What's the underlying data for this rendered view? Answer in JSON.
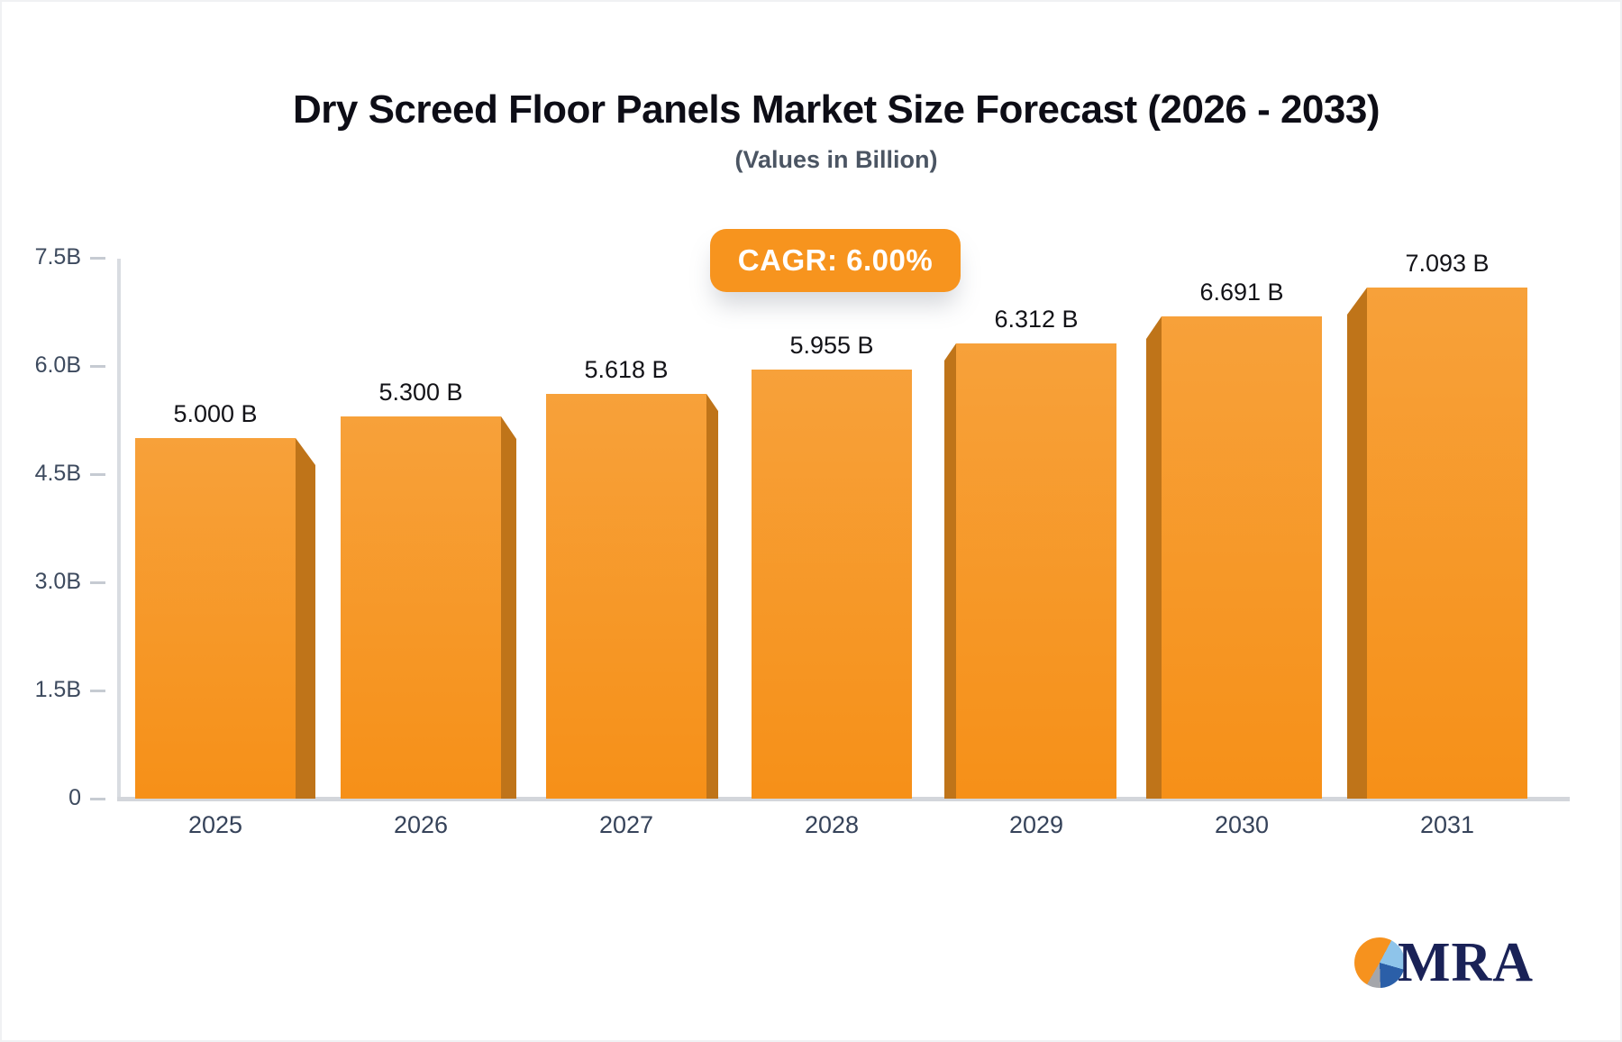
{
  "title": "Dry Screed Floor Panels Market Size Forecast (2026 - 2033)",
  "subtitle": "(Values in Billion)",
  "badge": {
    "label": "CAGR: 6.00%",
    "color": "#f7941e"
  },
  "logo": {
    "text": "MRA",
    "pie_icon_colors": [
      "#f6921e",
      "#8ec4ea",
      "#2b5fa8",
      "#a4a6ab"
    ]
  },
  "chart_data": {
    "type": "bar",
    "categories": [
      "2025",
      "2026",
      "2027",
      "2028",
      "2029",
      "2030",
      "2031"
    ],
    "values": [
      5.0,
      5.3,
      5.618,
      5.955,
      6.312,
      6.691,
      7.093
    ],
    "value_labels": [
      "5.000 B",
      "5.300 B",
      "5.618 B",
      "5.955 B",
      "6.312 B",
      "6.691 B",
      "7.093 B"
    ],
    "title": "Dry Screed Floor Panels Market Size Forecast (2026 - 2033)",
    "subtitle": "(Values in Billion)",
    "annotation": "CAGR: 6.00%",
    "xlabel": "",
    "ylabel": "",
    "ylim": [
      0,
      7.5
    ],
    "yticks": [
      {
        "value": 7.5,
        "label": "7.5B"
      },
      {
        "value": 6.0,
        "label": "6.0B"
      },
      {
        "value": 4.5,
        "label": "4.5B"
      },
      {
        "value": 3.0,
        "label": "3.0B"
      },
      {
        "value": 1.5,
        "label": "1.5B"
      },
      {
        "value": 0,
        "label": "0"
      }
    ],
    "grid": false,
    "legend": false,
    "bar_color_top": "#f7a13a",
    "bar_color_bottom": "#f69018",
    "bar_side_color": "#bf7419",
    "axis_color": "#d9dce1"
  }
}
